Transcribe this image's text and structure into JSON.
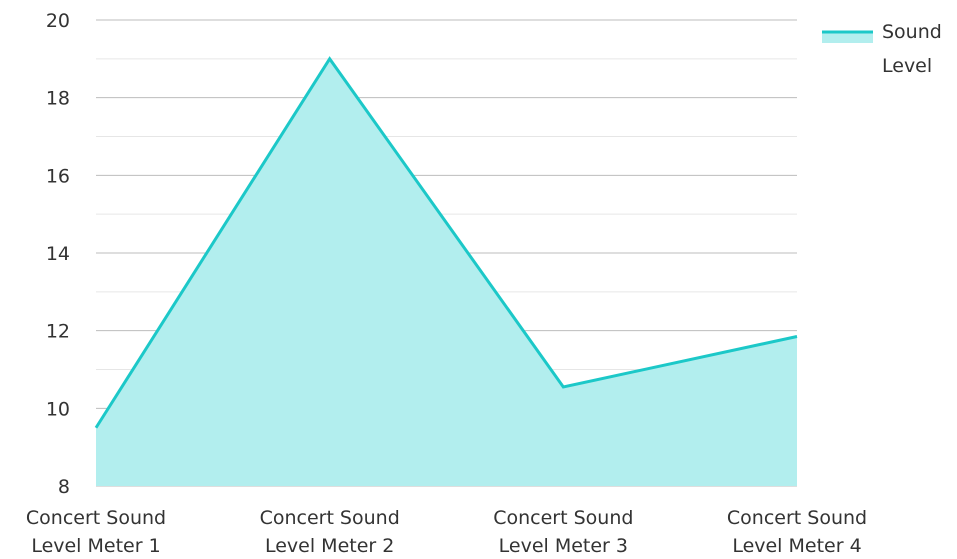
{
  "chart_data": {
    "type": "area",
    "categories": [
      "Concert Sound Level Meter 1",
      "Concert Sound Level Meter 2",
      "Concert Sound Level Meter 3",
      "Concert Sound Level Meter 4"
    ],
    "series": [
      {
        "name": "Sound Level",
        "values": [
          9.5,
          19,
          10.55,
          11.85
        ]
      }
    ],
    "title": "",
    "xlabel": "",
    "ylabel": "",
    "ylim": [
      8,
      20
    ],
    "yticks": [
      8,
      10,
      12,
      14,
      16,
      18,
      20
    ],
    "grid": true,
    "legend": "top-right",
    "colors": {
      "line": "#1cc8c8",
      "fill": "#b2eeee",
      "grid_major": "#bdbdbd",
      "grid_minor": "#e6e6e6"
    }
  }
}
